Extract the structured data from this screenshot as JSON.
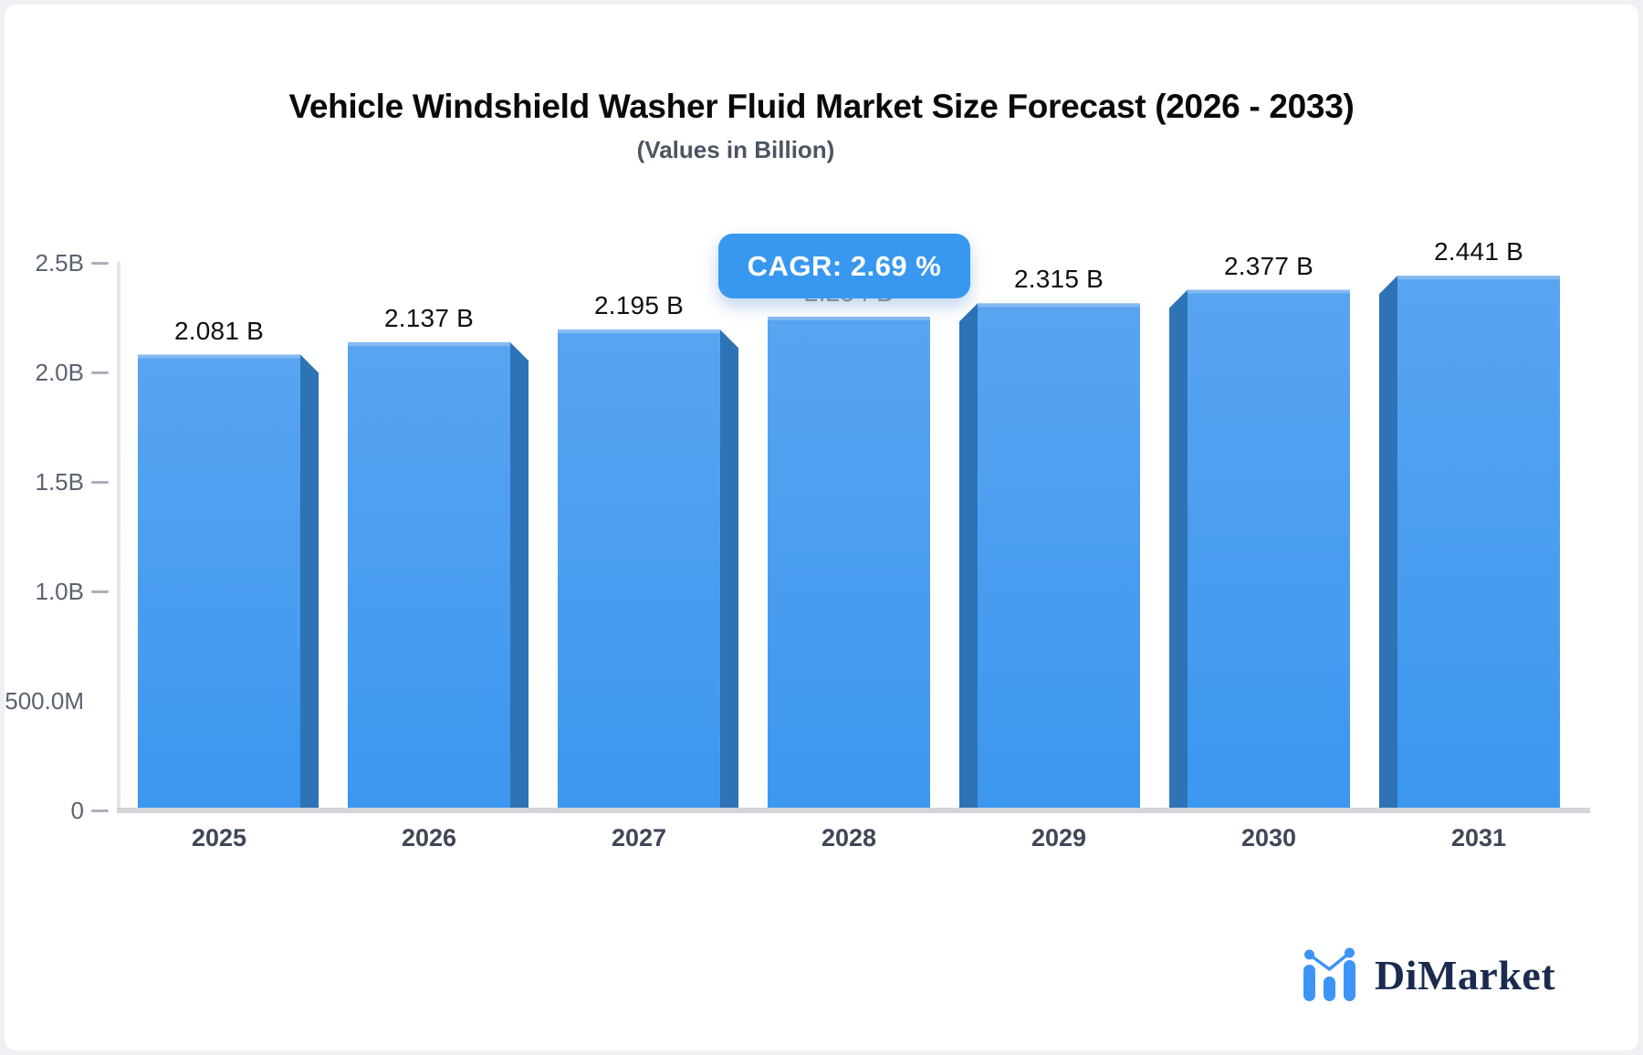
{
  "title": "Vehicle Windshield Washer Fluid Market Size Forecast (2026 - 2033)",
  "subtitle": "(Values in Billion)",
  "badge": {
    "label": "CAGR: 2.69 %"
  },
  "logo": {
    "text": "DiMarket"
  },
  "colors": {
    "bar_face_top": "#58a4f1",
    "bar_face_bottom": "#3c97f0",
    "bar_face_highlight": "#85baf3",
    "bar_side": "#2d73b5",
    "badge_bg": "#3898f0",
    "axis_baseline": "#d3d5da",
    "axis_vline": "#e3e5e9",
    "logo_blue": "#3e94f5"
  },
  "chart_data": {
    "type": "bar",
    "title": "Vehicle Windshield Washer Fluid Market Size Forecast (2026 - 2033)",
    "subtitle": "(Values in Billion)",
    "categories": [
      "2025",
      "2026",
      "2027",
      "2028",
      "2029",
      "2030",
      "2031"
    ],
    "values": [
      2.081,
      2.137,
      2.195,
      2.254,
      2.315,
      2.377,
      2.441
    ],
    "value_labels": [
      "2.081 B",
      "2.137 B",
      "2.195 B",
      "2.254 B",
      "2.315 B",
      "2.377 B",
      "2.441 B"
    ],
    "unit": "B",
    "ylim": [
      0,
      2.5
    ],
    "grid": false,
    "y_ticks": [
      {
        "label": "2.5B",
        "value": 2.5,
        "tick": true
      },
      {
        "label": "2.0B",
        "value": 2.0,
        "tick": true
      },
      {
        "label": "1.5B",
        "value": 1.5,
        "tick": true
      },
      {
        "label": "1.0B",
        "value": 1.0,
        "tick": true
      },
      {
        "label": "500.0M",
        "value": 0.5,
        "tick": false
      },
      {
        "label": "0",
        "value": 0.0,
        "tick": true
      }
    ]
  }
}
